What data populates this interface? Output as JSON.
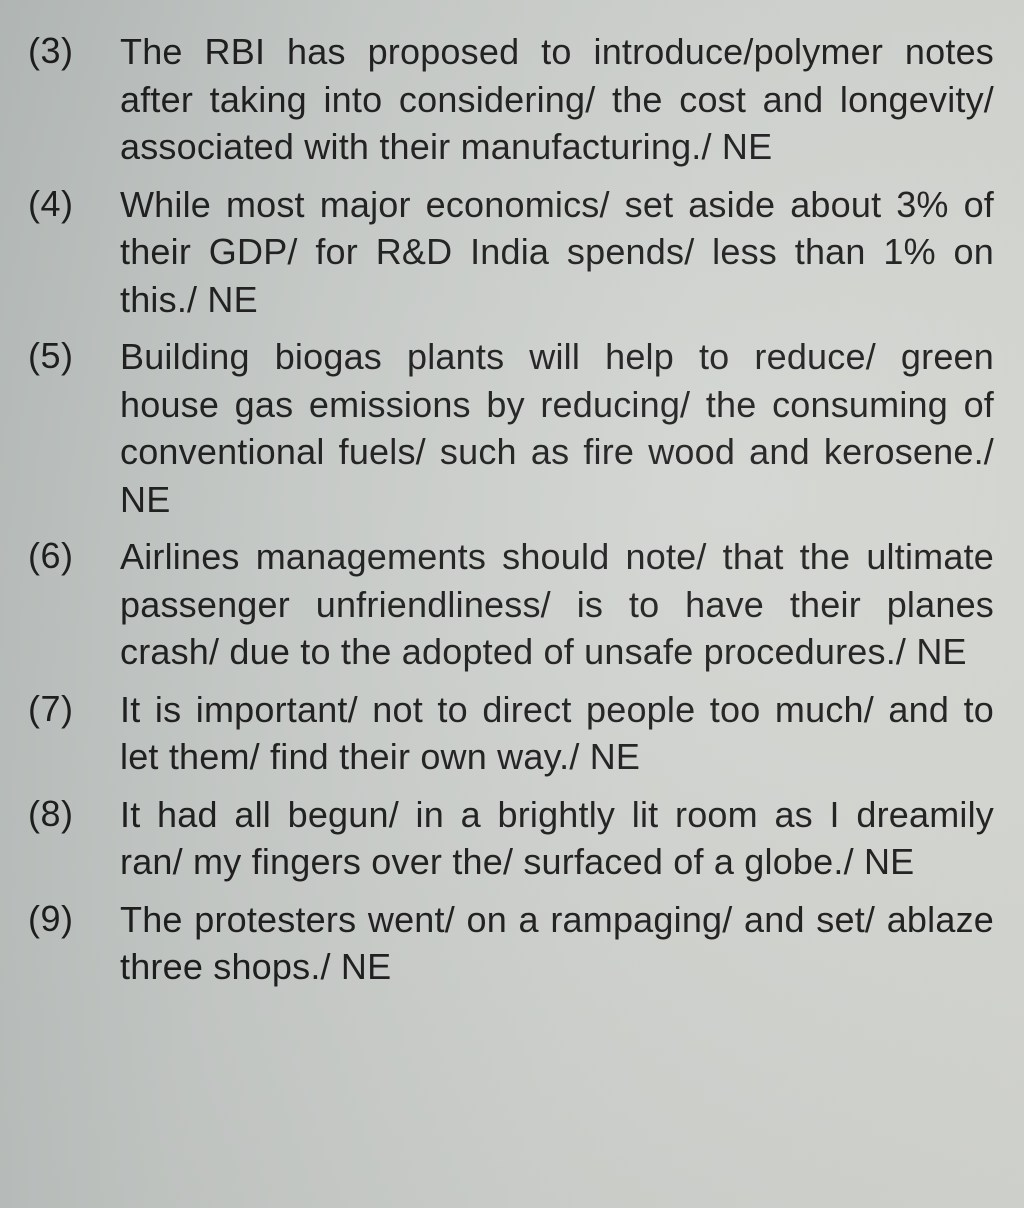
{
  "items": [
    {
      "num": "(3)",
      "text": "The RBI has proposed to introduce/polymer notes after taking into considering/ the cost and longevity/ associated with their manufacturing./ NE"
    },
    {
      "num": "(4)",
      "text": "While most major economics/ set aside about 3% of their GDP/ for R&D India spends/ less than 1% on this./ NE"
    },
    {
      "num": "(5)",
      "text": "Building biogas plants will help to reduce/ green house gas emissions by reducing/ the consuming of conventional fuels/ such as fire wood and kerosene./ NE"
    },
    {
      "num": "(6)",
      "text": "Airlines managements should note/ that the ultimate passenger unfriendliness/ is to have their planes crash/ due to the adopted of unsafe procedures./ NE"
    },
    {
      "num": "(7)",
      "text": "It is important/ not to direct people too much/ and to let them/ find their own way./ NE"
    },
    {
      "num": "(8)",
      "text": "It had all begun/ in a brightly lit room as I dreamily ran/ my fingers over the/ surfaced of a globe./ NE"
    },
    {
      "num": "(9)",
      "text": "The protesters went/ on a rampaging/ and set/ ablaze three shops./ NE"
    }
  ]
}
